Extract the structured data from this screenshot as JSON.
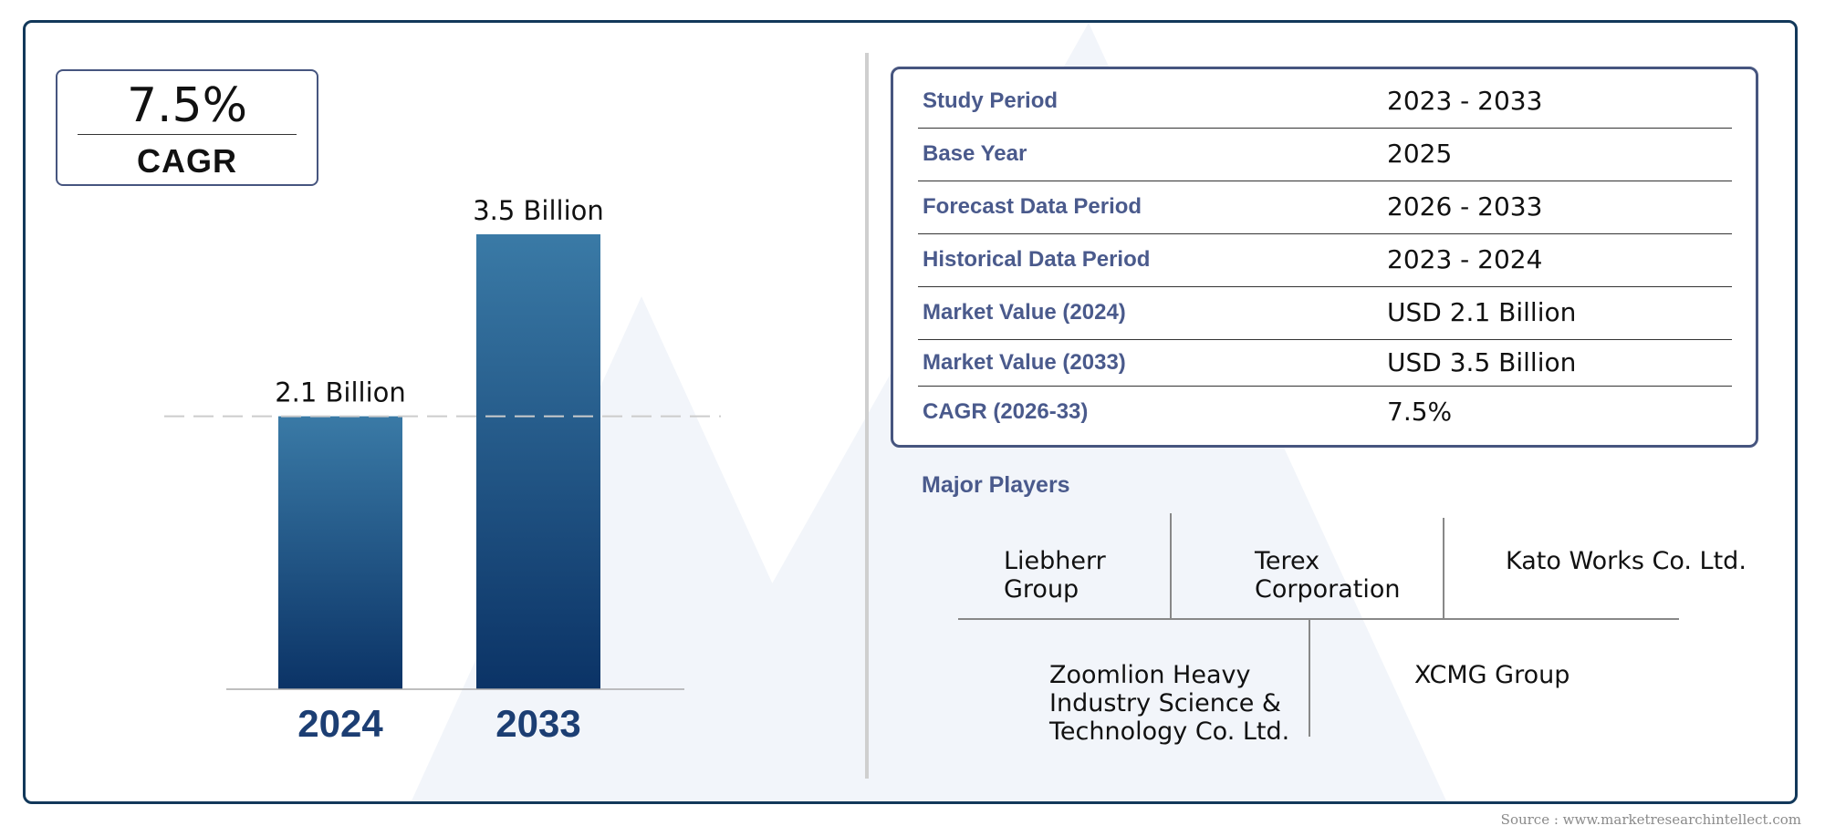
{
  "cagr_badge": {
    "value": "7.5%",
    "label": "CAGR"
  },
  "chart_data": {
    "type": "bar",
    "categories": [
      "2024",
      "2033"
    ],
    "values": [
      2.1,
      3.5
    ],
    "value_labels": [
      "2.1 Billion",
      "3.5 Billion"
    ],
    "title": "",
    "xlabel": "",
    "ylabel": "",
    "ylim": [
      0,
      3.5
    ],
    "reference_line": 2.1,
    "grid": false,
    "legend": "none",
    "colors": {
      "bar_top": "#3a7aa6",
      "bar_bottom": "#0b3366",
      "year_label": "#1c3e73"
    }
  },
  "info_table": {
    "rows": [
      {
        "label": "Study Period",
        "value": "2023 - 2033"
      },
      {
        "label": "Base Year",
        "value": "2025"
      },
      {
        "label": "Forecast Data Period",
        "value": "2026 - 2033"
      },
      {
        "label": "Historical Data Period",
        "value": "2023 - 2024"
      },
      {
        "label": "Market Value (2024)",
        "value": "USD 2.1 Billion"
      },
      {
        "label": "Market Value (2033)",
        "value": "USD 3.5 Billion"
      },
      {
        "label": "CAGR (2026-33)",
        "value": "7.5%"
      }
    ]
  },
  "major_players": {
    "title": "Major Players",
    "players": [
      "Liebherr\nGroup",
      "Terex\nCorporation",
      "Kato Works Co. Ltd.",
      "Zoomlion Heavy\nIndustry Science &\nTechnology Co. Ltd.",
      "XCMG Group"
    ]
  },
  "source": "Source : www.marketresearchintellect.com",
  "colors": {
    "frame": "#12385a",
    "label_text": "#4a5a8c",
    "box_border": "#46557f"
  }
}
